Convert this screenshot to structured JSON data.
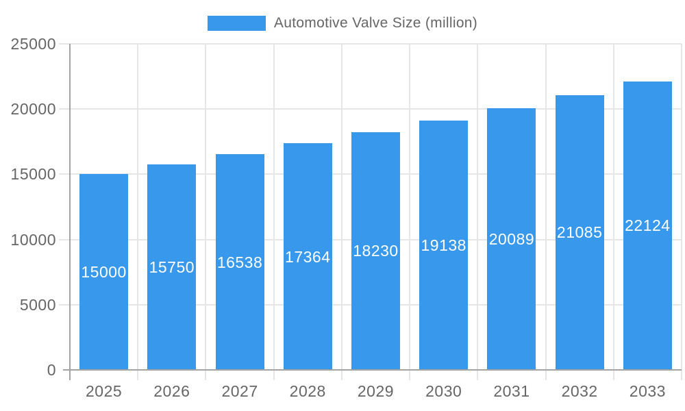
{
  "chart_data": {
    "type": "bar",
    "title": "Automotive Valve Size (million)",
    "legend_position": "top",
    "grid": true,
    "categories": [
      "2025",
      "2026",
      "2027",
      "2028",
      "2029",
      "2030",
      "2031",
      "2032",
      "2033"
    ],
    "series": [
      {
        "name": "Automotive Valve Size (million)",
        "values": [
          15000,
          15750,
          16538,
          17364,
          18230,
          19138,
          20089,
          21085,
          22124
        ]
      }
    ],
    "data_labels": [
      "15000",
      "15750",
      "16538",
      "17364",
      "18230",
      "19138",
      "20089",
      "21085",
      "22124"
    ],
    "xlabel": "",
    "ylabel": "",
    "ylim": [
      0,
      25000
    ],
    "y_ticks": [
      0,
      5000,
      10000,
      15000,
      20000,
      25000
    ]
  },
  "colors": {
    "bar": "#3899ec",
    "grid": "#e6e6e6",
    "axis": "#a3a3a3",
    "tick_text": "#666666",
    "bar_label_text": "#ffffff",
    "legend_text": "#666666",
    "background": "#ffffff"
  }
}
